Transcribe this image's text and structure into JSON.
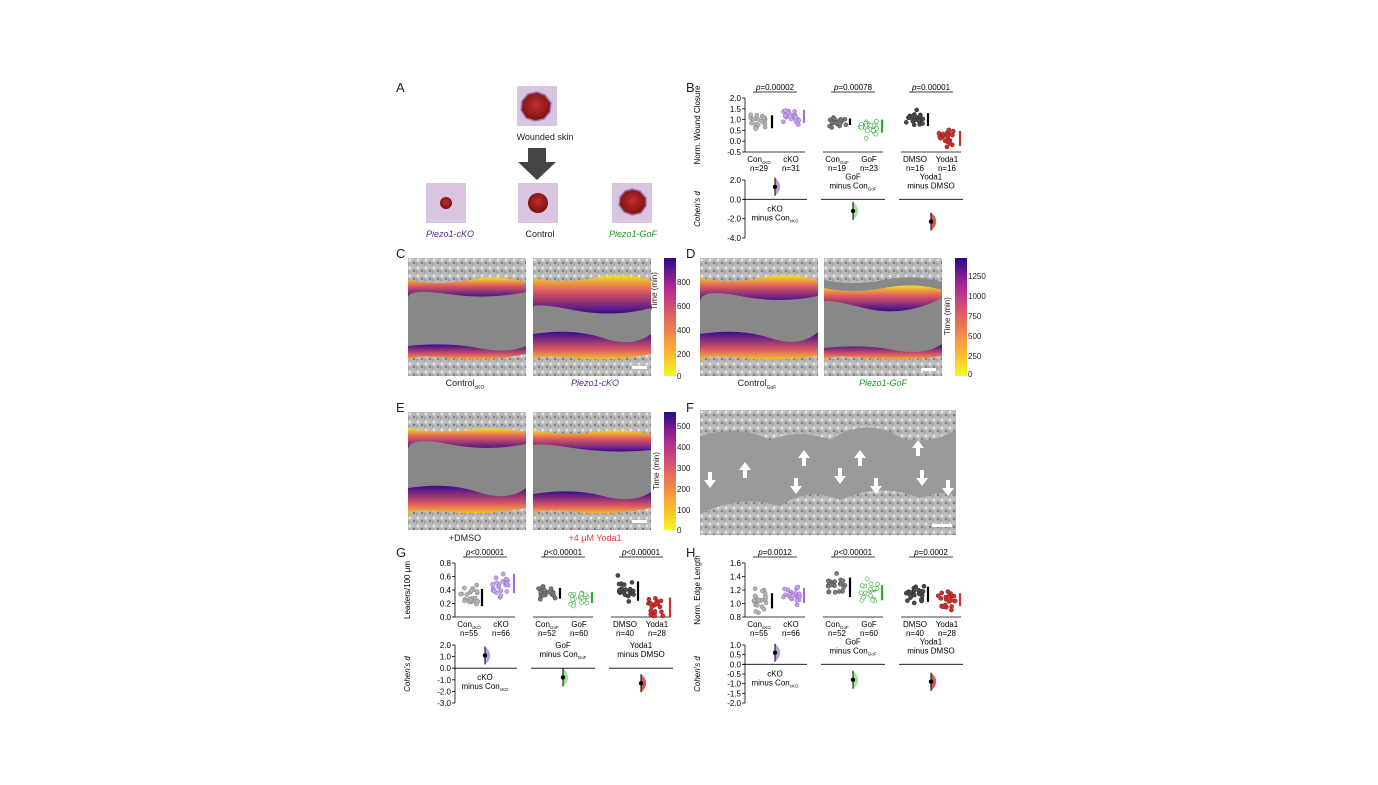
{
  "panels": {
    "A": "A",
    "B": "B",
    "C": "C",
    "D": "D",
    "E": "E",
    "F": "F",
    "G": "G",
    "H": "H"
  },
  "panel_a": {
    "wounded_label": "Wounded skin",
    "cko_label": "Piezo1-cKO",
    "control_label": "Control",
    "gof_label": "Piezo1-GoF"
  },
  "panel_c": {
    "left_label": "Control",
    "left_sub": "cKO",
    "right_label": "Piezo1-cKO",
    "cbar_title": "Time (min)",
    "cbar_ticks": [
      "800",
      "600",
      "400",
      "200",
      "0"
    ]
  },
  "panel_d": {
    "left_label": "Control",
    "left_sub": "GoF",
    "right_label": "Piezo1-GoF",
    "cbar_title": "Time (min)",
    "cbar_ticks": [
      "1250",
      "1000",
      "750",
      "500",
      "250",
      "0"
    ]
  },
  "panel_e": {
    "left_label": "+DMSO",
    "right_label": "+4 μM Yoda1",
    "cbar_title": "Time (min)",
    "cbar_ticks": [
      "500",
      "400",
      "300",
      "200",
      "100",
      "0"
    ]
  },
  "colors": {
    "cko": "#a070d0",
    "gof": "#2ab02a",
    "yoda": "#c83232",
    "con": "#9a9a9a",
    "dmso": "#555555"
  },
  "chart_data": [
    {
      "type": "scatter",
      "panel": "B",
      "ylabel": "Norm. Wound Closure",
      "yticks": [
        "2.0",
        "1.5",
        "1.0",
        "0.5",
        "0.0",
        "-0.5"
      ],
      "groups": [
        {
          "label": "Con",
          "sub": "cKO",
          "n": "n=29"
        },
        {
          "label": "cKO",
          "sub": "",
          "n": "n=31"
        },
        {
          "label": "Con",
          "sub": "GoF",
          "n": "n=19"
        },
        {
          "label": "GoF",
          "sub": "",
          "n": "n=23"
        },
        {
          "label": "DMSO",
          "sub": "",
          "n": "n=16"
        },
        {
          "label": "Yoda1",
          "sub": "",
          "n": "n=16"
        }
      ],
      "pvalues": [
        "p=0.00002",
        "p=0.00078",
        "p=0.00001"
      ],
      "effect_ylabel": "Cohen's d",
      "effect_yticks": [
        "2.0",
        "0.0",
        "-2.0",
        "-4.0"
      ],
      "contrasts": [
        {
          "line1": "cKO",
          "line2": "minus Con",
          "sub": "cKO",
          "d": 1.3
        },
        {
          "line1": "GoF",
          "line2": "minus Con",
          "sub": "GoF",
          "d": -1.2
        },
        {
          "line1": "Yoda1",
          "line2": "minus DMSO",
          "sub": "",
          "d": -2.3
        }
      ]
    },
    {
      "type": "scatter",
      "panel": "G",
      "ylabel": "Leaders/100 μm",
      "yticks": [
        "0.8",
        "0.6",
        "0.4",
        "0.2",
        "0.0"
      ],
      "groups": [
        {
          "label": "Con",
          "sub": "cKO",
          "n": "n=55"
        },
        {
          "label": "cKO",
          "sub": "",
          "n": "n=66"
        },
        {
          "label": "Con",
          "sub": "GoF",
          "n": "n=52"
        },
        {
          "label": "GoF",
          "sub": "",
          "n": "n=60"
        },
        {
          "label": "DMSO",
          "sub": "",
          "n": "n=40"
        },
        {
          "label": "Yoda1",
          "sub": "",
          "n": "n=28"
        }
      ],
      "pvalues": [
        "p<0.00001",
        "p<0.00001",
        "p<0.00001"
      ],
      "effect_ylabel": "Cohen's d",
      "effect_yticks": [
        "2.0",
        "1.0",
        "0.0",
        "-1.0",
        "-2.0",
        "-3.0"
      ],
      "contrasts": [
        {
          "line1": "cKO",
          "line2": "minus Con",
          "sub": "cKO",
          "d": 1.1
        },
        {
          "line1": "GoF",
          "line2": "minus Con",
          "sub": "GoF",
          "d": -0.8
        },
        {
          "line1": "Yoda1",
          "line2": "minus DMSO",
          "sub": "",
          "d": -1.3
        }
      ]
    },
    {
      "type": "scatter",
      "panel": "H",
      "ylabel": "Norm. Edge Length",
      "yticks": [
        "1.6",
        "1.4",
        "1.2",
        "1.0",
        "0.8"
      ],
      "groups": [
        {
          "label": "Con",
          "sub": "cKO",
          "n": "n=55"
        },
        {
          "label": "cKO",
          "sub": "",
          "n": "n=66"
        },
        {
          "label": "Con",
          "sub": "GoF",
          "n": "n=52"
        },
        {
          "label": "GoF",
          "sub": "",
          "n": "n=60"
        },
        {
          "label": "DMSO",
          "sub": "",
          "n": "n=40"
        },
        {
          "label": "Yoda1",
          "sub": "",
          "n": "n=28"
        }
      ],
      "pvalues": [
        "p=0.0012",
        "p<0.00001",
        "p=0.0002"
      ],
      "effect_ylabel": "Cohen's d",
      "effect_yticks": [
        "1.0",
        "0.5",
        "0.0",
        "-0.5",
        "-1.0",
        "-1.5",
        "-2.0"
      ],
      "contrasts": [
        {
          "line1": "cKO",
          "line2": "minus Con",
          "sub": "cKO",
          "d": 0.6
        },
        {
          "line1": "GoF",
          "line2": "minus Con",
          "sub": "GoF",
          "d": -0.8
        },
        {
          "line1": "Yoda1",
          "line2": "minus DMSO",
          "sub": "",
          "d": -0.9
        }
      ]
    }
  ]
}
